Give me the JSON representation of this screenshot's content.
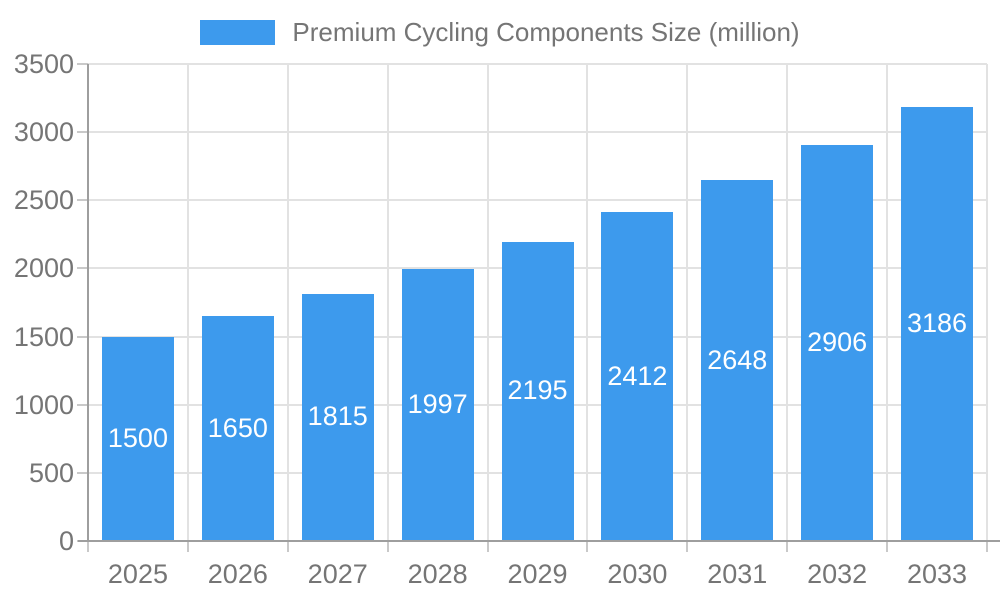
{
  "chart_data": {
    "type": "bar",
    "title": "Premium Cycling Components Size (million)",
    "categories": [
      "2025",
      "2026",
      "2027",
      "2028",
      "2029",
      "2030",
      "2031",
      "2032",
      "2033"
    ],
    "values": [
      1500,
      1650,
      1815,
      1997,
      2195,
      2412,
      2648,
      2906,
      3186
    ],
    "value_labels": [
      "1500",
      "1650",
      "1815",
      "1997",
      "2195",
      "2412",
      "2648",
      "2906",
      "3186"
    ],
    "xlabel": "",
    "ylabel": "",
    "ylim": [
      0,
      3500
    ],
    "ytick_step": 500,
    "y_tick_labels": [
      "0",
      "500",
      "1000",
      "1500",
      "2000",
      "2500",
      "3000",
      "3500"
    ],
    "grid": true,
    "legend_position": "top-center",
    "bar_label_position": "inside-center",
    "colors": {
      "bar": "#3D9AED",
      "bar_label": "#ffffff",
      "axis_text": "#757575",
      "grid_line": "#e2e2e2",
      "axis_line": "#9e9e9e",
      "tick": "#c9c9c9",
      "background": "#ffffff"
    }
  }
}
